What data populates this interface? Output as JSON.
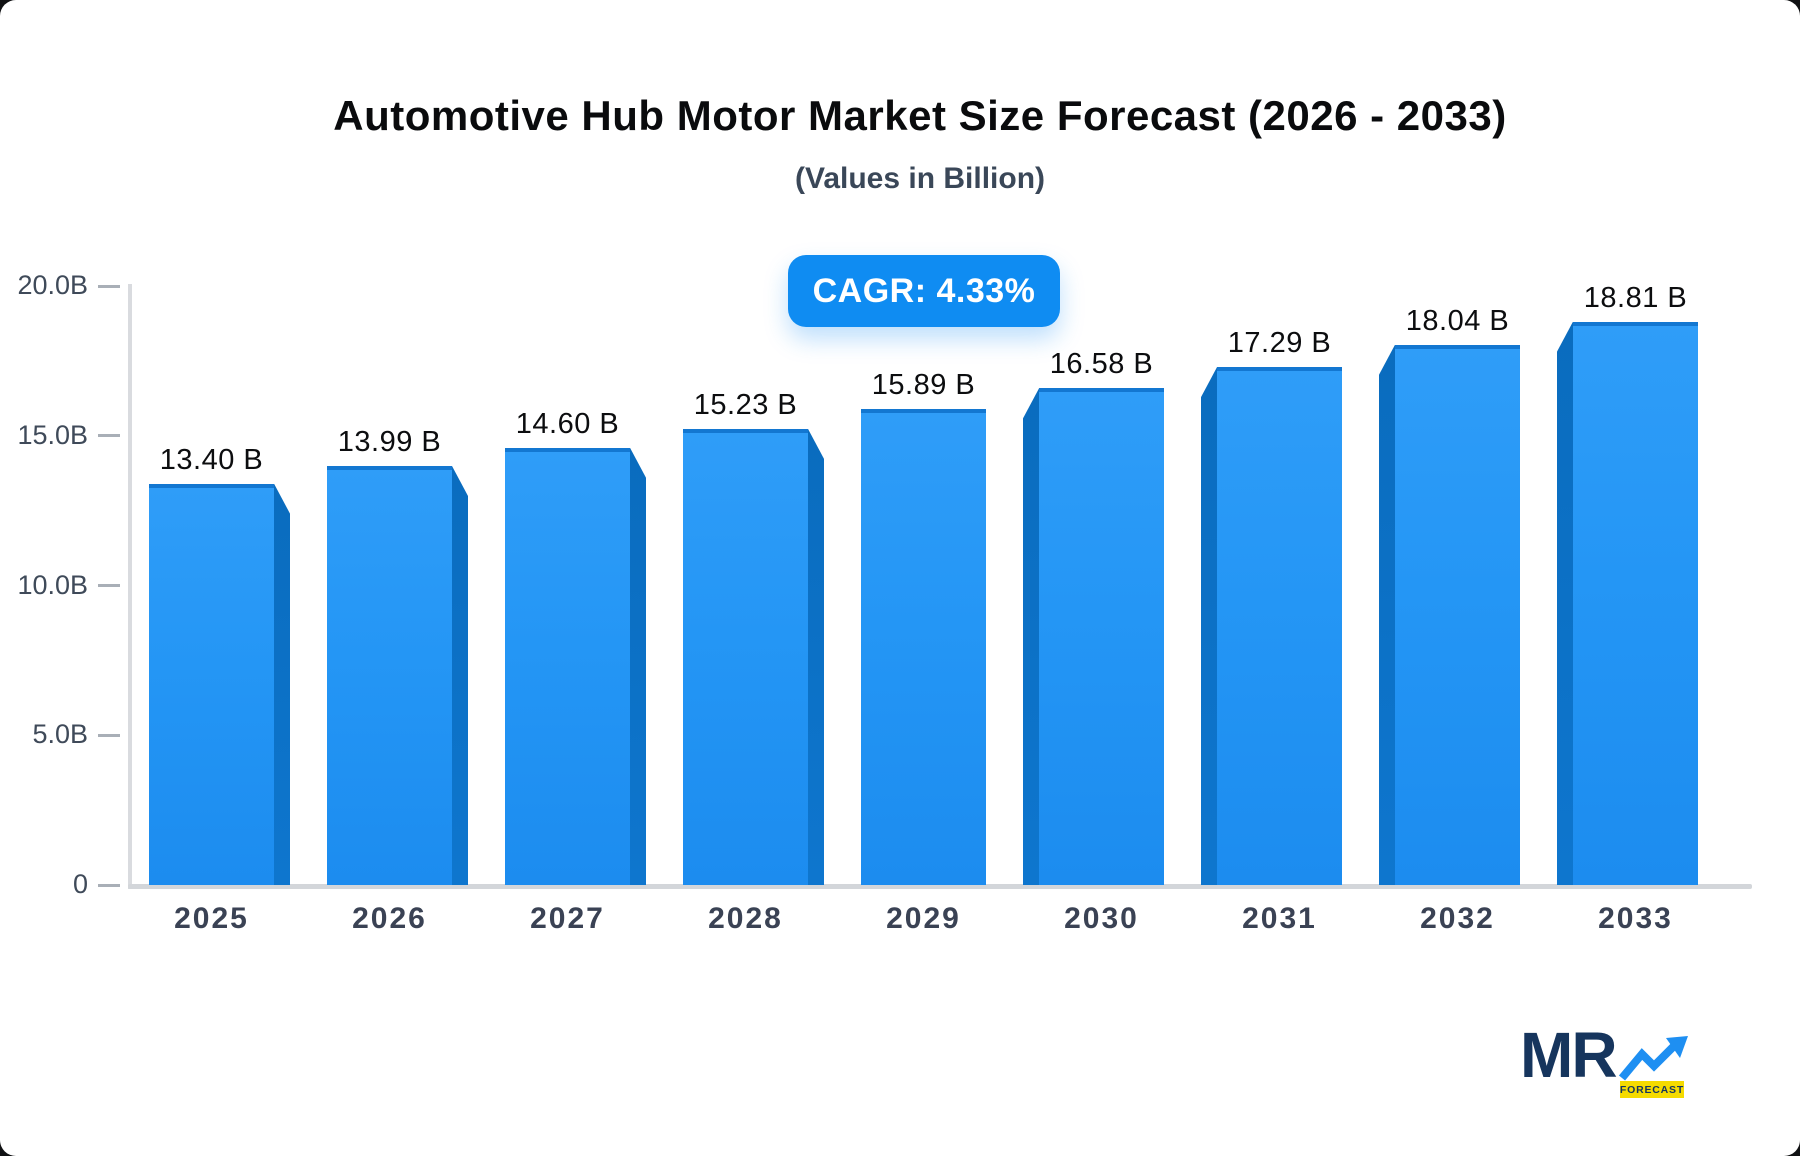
{
  "title": "Automotive Hub Motor Market Size Forecast (2026 - 2033)",
  "subtitle": "(Values in Billion)",
  "badge": {
    "label": "CAGR: 4.33%"
  },
  "chart_data": {
    "type": "bar",
    "title": "Automotive Hub Motor Market Size Forecast (2026 - 2033)",
    "subtitle": "(Values in Billion)",
    "categories": [
      "2025",
      "2026",
      "2027",
      "2028",
      "2029",
      "2030",
      "2031",
      "2032",
      "2033"
    ],
    "values": [
      13.4,
      13.99,
      14.6,
      15.23,
      15.89,
      16.58,
      17.29,
      18.04,
      18.81
    ],
    "value_labels": [
      "13.40 B",
      "13.99 B",
      "14.60 B",
      "15.23 B",
      "15.89 B",
      "16.58 B",
      "17.29 B",
      "18.04 B",
      "18.81 B"
    ],
    "cagr": "CAGR: 4.33%",
    "xlabel": "",
    "ylabel": "",
    "ylim": [
      0,
      20
    ],
    "yticks": [
      {
        "label": "20.0B",
        "value": 20
      },
      {
        "label": "15.0B",
        "value": 15
      },
      {
        "label": "10.0B",
        "value": 10
      },
      {
        "label": "5.0B",
        "value": 5
      },
      {
        "label": "0",
        "value": 0
      }
    ],
    "grid": false,
    "legend": "none"
  },
  "logo": {
    "mr": "MR",
    "forecast": "FORECAST"
  },
  "colors": {
    "bar_face": "#2496f5",
    "bar_face_top_edge": "#1377d1",
    "bar_side": "#0c70c4",
    "badge_blue": "#0f8cf2",
    "axis_gray": "#d5d8dc",
    "label_dark": "#3a4254",
    "logo_navy": "#16355d",
    "logo_yellow": "#f5db00",
    "arrow_blue": "#1e8ff2"
  }
}
